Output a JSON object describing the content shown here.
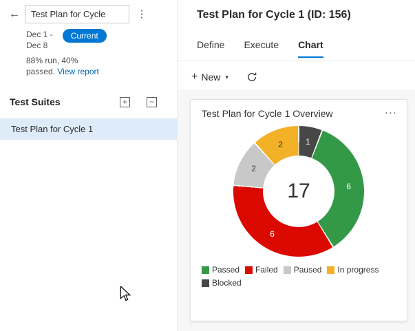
{
  "colors": {
    "accent": "#0078d4",
    "selected_row": "#deecf9",
    "content_background": "#f7f7f7"
  },
  "left_panel": {
    "back_icon": "←",
    "plan_title_value": "Test Plan for Cycle",
    "kebab_icon": "⋮",
    "date_line1": "Dec 1 -",
    "date_line2": "Dec 8",
    "current_badge": "Current",
    "summary_text": "88% run, 40% passed.",
    "view_report_link": "View report",
    "suites_header": "Test Suites",
    "add_suite_icon": "+",
    "collapse_icon": "−",
    "suite_items": [
      {
        "label": "Test Plan for Cycle 1",
        "selected": true
      }
    ]
  },
  "main": {
    "page_title": "Test Plan for Cycle 1 (ID: 156)",
    "tabs": [
      {
        "label": "Define"
      },
      {
        "label": "Execute"
      },
      {
        "label": "Chart"
      }
    ],
    "active_tab": "Chart",
    "toolbar": {
      "plus_icon": "+",
      "new_label": "New",
      "caret_icon": "▾",
      "refresh_icon_name": "refresh-icon"
    },
    "card_menu_icon": "···"
  },
  "chart_data": {
    "type": "pie",
    "title": "Test Plan for Cycle 1 Overview",
    "total": 17,
    "center_label": "17",
    "slices": [
      {
        "label": "Blocked",
        "value": 1,
        "color": "#474747",
        "text_color": "#ffffff"
      },
      {
        "label": "Passed",
        "value": 6,
        "color": "#339947",
        "text_color": "#ffffff"
      },
      {
        "label": "Failed",
        "value": 6,
        "color": "#da0a00",
        "text_color": "#ffffff"
      },
      {
        "label": "Paused",
        "value": 2,
        "color": "#c8c8c8",
        "text_color": "#333333"
      },
      {
        "label": "In progress",
        "value": 2,
        "color": "#f2b126",
        "text_color": "#333333"
      }
    ],
    "legend": [
      {
        "label": "Passed",
        "color": "#339947"
      },
      {
        "label": "Failed",
        "color": "#da0a00"
      },
      {
        "label": "Paused",
        "color": "#c8c8c8"
      },
      {
        "label": "In progress",
        "color": "#f2b126"
      },
      {
        "label": "Blocked",
        "color": "#474747"
      }
    ],
    "legend_position": "bottom"
  }
}
